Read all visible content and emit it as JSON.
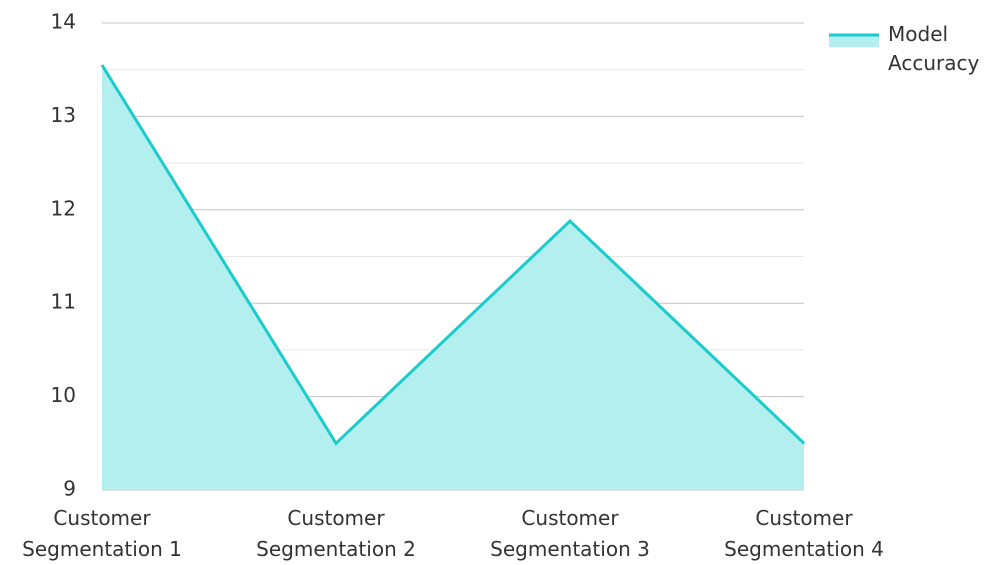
{
  "chart_data": {
    "type": "area",
    "categories": [
      "Customer Segmentation 1",
      "Customer Segmentation 2",
      "Customer Segmentation 3",
      "Customer Segmentation 4"
    ],
    "series": [
      {
        "name": "Model Accuracy",
        "color": "#1ccbcb",
        "fill": "#b2efee",
        "values": [
          13.55,
          9.5,
          11.88,
          9.5
        ]
      }
    ],
    "ylim": [
      9,
      14
    ],
    "yticks": [
      9,
      10,
      11,
      12,
      13,
      14
    ],
    "yminor_ticks": [
      9.5,
      10.5,
      11.5,
      12.5,
      13.5
    ],
    "grid": true,
    "legend": "top-right"
  }
}
